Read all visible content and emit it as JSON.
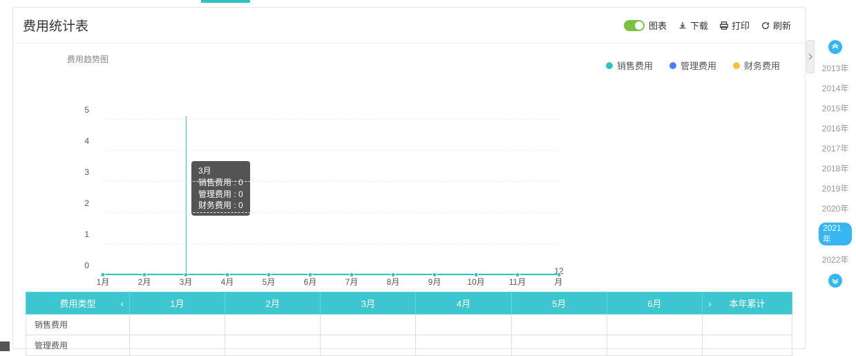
{
  "title": "费用统计表",
  "toolbar": {
    "chart_label": "图表",
    "download_label": "下载",
    "print_label": "打印",
    "refresh_label": "刷新"
  },
  "colors": {
    "accent": "#2dc3c3",
    "table_header": "#3ec6d0",
    "toggle_on": "#7ac143",
    "rail_btn": "#35b6f0",
    "series1": "#2dc3c3",
    "series2": "#4a7dff",
    "series3": "#f5c23e",
    "tooltip_bg": "rgba(60,60,60,0.88)",
    "grid": "#eeeeee"
  },
  "chart": {
    "subtitle": "费用趋势图",
    "type": "line",
    "legend": [
      "销售费用",
      "管理费用",
      "财务费用"
    ],
    "legend_colors": [
      "#2dc3c3",
      "#4a7dff",
      "#f5c23e"
    ],
    "x_labels": [
      "1月",
      "2月",
      "3月",
      "4月",
      "5月",
      "6月",
      "7月",
      "8月",
      "9月",
      "10月",
      "11月",
      "12月"
    ],
    "y_min": 0,
    "y_max": 5,
    "y_tick_step": 1,
    "series": [
      {
        "name": "销售费用",
        "values": [
          0,
          0,
          0,
          0,
          0,
          0,
          0,
          0,
          0,
          0,
          0,
          0
        ]
      },
      {
        "name": "管理费用",
        "values": [
          0,
          0,
          0,
          0,
          0,
          0,
          0,
          0,
          0,
          0,
          0,
          0
        ]
      },
      {
        "name": "财务费用",
        "values": [
          0,
          0,
          0,
          0,
          0,
          0,
          0,
          0,
          0,
          0,
          0,
          0
        ]
      }
    ],
    "hover_index": 2,
    "tooltip": {
      "title": "3月",
      "lines": [
        "销售费用 : 0",
        "管理费用 : 0",
        "财务费用 : 0"
      ]
    }
  },
  "table": {
    "row_label_header": "费用类型",
    "total_header": "本年累计",
    "visible_months": [
      "1月",
      "2月",
      "3月",
      "4月",
      "5月",
      "6月"
    ],
    "rows": [
      {
        "label": "销售费用",
        "cells": [
          "",
          "",
          "",
          "",
          "",
          ""
        ],
        "total": ""
      },
      {
        "label": "管理费用",
        "cells": [
          "",
          "",
          "",
          "",
          "",
          ""
        ],
        "total": ""
      }
    ]
  },
  "year_rail": {
    "years": [
      "2013年",
      "2014年",
      "2015年",
      "2016年",
      "2017年",
      "2018年",
      "2019年",
      "2020年",
      "2021年",
      "2022年"
    ],
    "active": "2021年"
  }
}
